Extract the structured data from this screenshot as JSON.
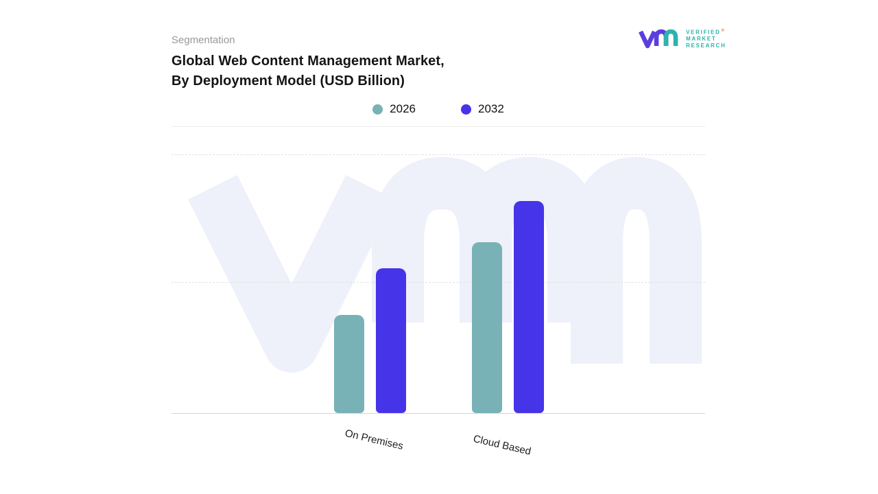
{
  "header": {
    "eyebrow": "Segmentation",
    "title_line1": "Global Web Content Management Market,",
    "title_line2": "By Deployment Model (USD Billion)"
  },
  "logo": {
    "lines": [
      "VERIFIED",
      "MARKET",
      "RESEARCH"
    ],
    "registered_mark": "®",
    "teal": "#2cb3ae",
    "purple": "#5b3ede",
    "accent": "#e8734a"
  },
  "legend": [
    {
      "label": "2026",
      "color": "#79b2b6"
    },
    {
      "label": "2032",
      "color": "#4634e8"
    }
  ],
  "watermark": {
    "name": "vmr-logo-watermark",
    "color": "#eef0fa"
  },
  "chart_data": {
    "type": "bar",
    "title": "Global Web Content Management Market, By Deployment Model (USD Billion)",
    "unit": "USD Billion",
    "categories": [
      "On Premises",
      "Cloud Based"
    ],
    "series": [
      {
        "name": "2026",
        "color": "#79b2b6",
        "values": [
          1.9,
          3.3
        ]
      },
      {
        "name": "2032",
        "color": "#4634e8",
        "values": [
          2.8,
          4.1
        ]
      }
    ],
    "xlabel": "",
    "ylabel": "",
    "ylim": [
      0,
      5
    ],
    "y_axis_labels_visible": false,
    "grid": "horizontal-dashed",
    "legend_position": "top-center"
  }
}
